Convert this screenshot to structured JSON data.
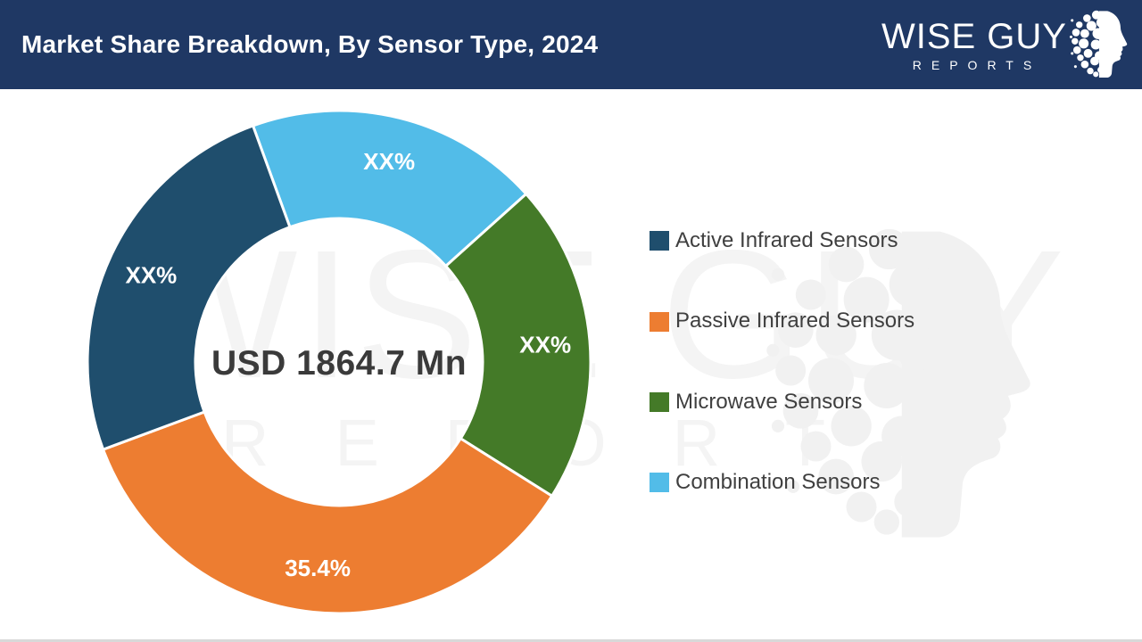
{
  "header": {
    "title": "Market Share Breakdown, By Sensor Type, 2024",
    "logo": {
      "line1": "WISE GUY",
      "line2": "REPORTS"
    }
  },
  "watermark": {
    "line1": "WISE GUY",
    "line2": "REPORTS"
  },
  "chart_data": {
    "type": "pie",
    "subtype": "donut",
    "center_label": "USD 1864.7 Mn",
    "start_angle_deg": 110,
    "legend_position": "right",
    "segments": [
      {
        "name": "Active Infrared Sensors",
        "value_pct": 25.1,
        "label": "XX%",
        "color": "#1f4e6d"
      },
      {
        "name": "Passive Infrared Sensors",
        "value_pct": 35.4,
        "label": "35.4%",
        "color": "#ed7d31"
      },
      {
        "name": "Microwave Sensors",
        "value_pct": 20.6,
        "label": "XX%",
        "color": "#447a28"
      },
      {
        "name": "Combination Sensors",
        "value_pct": 18.9,
        "label": "XX%",
        "color": "#52bce8"
      }
    ]
  }
}
